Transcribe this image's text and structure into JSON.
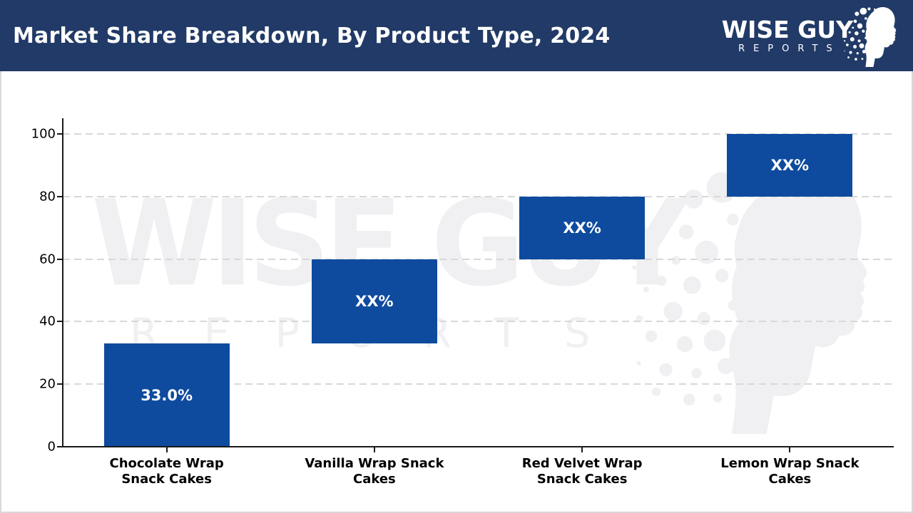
{
  "header": {
    "title": "Market Share Breakdown, By Product Type, 2024",
    "bg_color": "#213a67",
    "logo": {
      "line1": "WISE GUY",
      "line2": "REPORTS"
    }
  },
  "watermark": {
    "line1": "WISE GUY",
    "line2": "REPORTS"
  },
  "chart_data": {
    "type": "bar",
    "subtype": "waterfall",
    "title": "Market Share Breakdown, By Product Type, 2024",
    "categories": [
      "Chocolate Wrap Snack Cakes",
      "Vanilla Wrap Snack Cakes",
      "Red Velvet Wrap Snack Cakes",
      "Lemon Wrap Snack Cakes"
    ],
    "category_lines": [
      [
        "Chocolate Wrap",
        "Snack Cakes"
      ],
      [
        "Vanilla Wrap Snack",
        "Cakes"
      ],
      [
        "Red Velvet Wrap",
        "Snack Cakes"
      ],
      [
        "Lemon Wrap Snack",
        "Cakes"
      ]
    ],
    "segments": [
      {
        "start": 0,
        "end": 33,
        "value_label": "33.0%",
        "label": "33.0%"
      },
      {
        "start": 33,
        "end": 60,
        "value_label": "XX%",
        "label": "XX%"
      },
      {
        "start": 60,
        "end": 80,
        "value_label": "XX%",
        "label": "XX%"
      },
      {
        "start": 80,
        "end": 100,
        "value_label": "XX%",
        "label": "XX%"
      }
    ],
    "yticks": [
      0,
      20,
      40,
      60,
      80,
      100
    ],
    "ylim": [
      0,
      105
    ],
    "xlabel": "",
    "ylabel": "",
    "grid": "horizontal-dashed",
    "legend": "none",
    "bar_color": "#0e4b9e",
    "bar_label_color": "#ffffff"
  }
}
